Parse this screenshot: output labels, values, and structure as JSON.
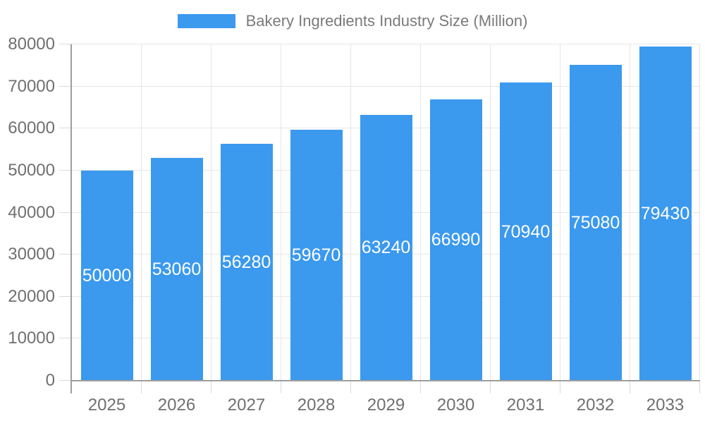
{
  "chart_data": {
    "type": "bar",
    "title": "Bakery Ingredients Industry Size (Million)",
    "legend": {
      "label": "Bakery Ingredients Industry Size (Million)",
      "position": "top"
    },
    "categories": [
      "2025",
      "2026",
      "2027",
      "2028",
      "2029",
      "2030",
      "2031",
      "2032",
      "2033"
    ],
    "series": [
      {
        "name": "Bakery Ingredients Industry Size (Million)",
        "values": [
          50000,
          53060,
          56280,
          59670,
          63240,
          66990,
          70940,
          75080,
          79430
        ]
      }
    ],
    "bar_value_labels": [
      "50000",
      "53060",
      "56280",
      "59670",
      "63240",
      "66990",
      "70940",
      "75080",
      "79430"
    ],
    "xlabel": "",
    "ylabel": "",
    "ylim": [
      0,
      80000
    ],
    "yticks": [
      0,
      10000,
      20000,
      30000,
      40000,
      50000,
      60000,
      70000,
      80000
    ],
    "ytick_labels": [
      "0",
      "10000",
      "20000",
      "30000",
      "40000",
      "50000",
      "60000",
      "70000",
      "80000"
    ],
    "grid": true,
    "legend_position": "top",
    "colors": {
      "bar": "#3B99EE",
      "bar_label": "#FFFFFF",
      "grid": "#E6E6E6",
      "tick": "#D9D9D9",
      "axis_line": "#9E9E9E",
      "tick_label": "#707070",
      "legend_text": "#7A7A7A",
      "background": "#FFFFFF"
    }
  }
}
